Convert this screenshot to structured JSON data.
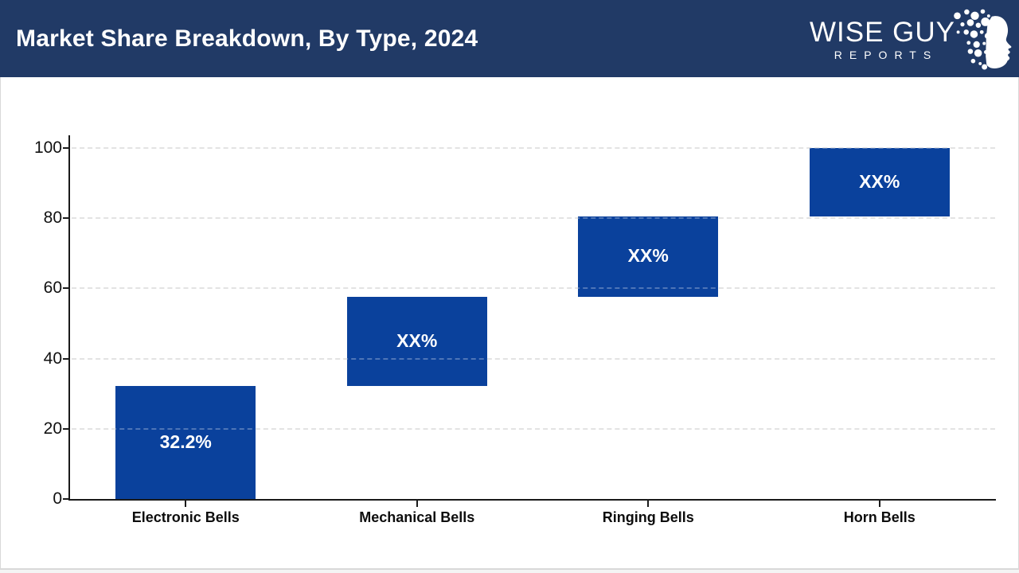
{
  "header": {
    "title": "Market Share Breakdown, By Type, 2024",
    "logo": {
      "line1": "WISE GUY",
      "line2": "REPORTS"
    }
  },
  "watermark": {
    "line1": "WISE GUY",
    "line2": "REPORTS"
  },
  "chart_data": {
    "type": "bar",
    "subtype": "waterfall",
    "title": "Market Share Breakdown, By Type, 2024",
    "unit": "%",
    "categories": [
      "Electronic Bells",
      "Mechanical Bells",
      "Ringing Bells",
      "Horn Bells"
    ],
    "segments": [
      {
        "category": "Electronic Bells",
        "start": 0,
        "end": 32.2,
        "value": 32.2,
        "label": "32.2%"
      },
      {
        "category": "Mechanical Bells",
        "start": 32.2,
        "end": 57.6,
        "value": 25.4,
        "label": "XX%"
      },
      {
        "category": "Ringing Bells",
        "start": 57.6,
        "end": 80.5,
        "value": 22.9,
        "label": "XX%"
      },
      {
        "category": "Horn Bells",
        "start": 80.5,
        "end": 100,
        "value": 19.5,
        "label": "XX%"
      }
    ],
    "yticks": [
      0,
      20,
      40,
      60,
      80,
      100
    ],
    "ylim": [
      0,
      104
    ],
    "grid": "dashed-horizontal",
    "legend": "none",
    "bar_color": "#0a419c",
    "value_label_color": "#ffffff"
  },
  "colors": {
    "header_bg": "#213a66",
    "bar": "#0a419c",
    "grid": "#d9d9d9",
    "axis": "#1a1a1a",
    "watermark": "#f1f2f4",
    "title_text": "#ffffff"
  }
}
